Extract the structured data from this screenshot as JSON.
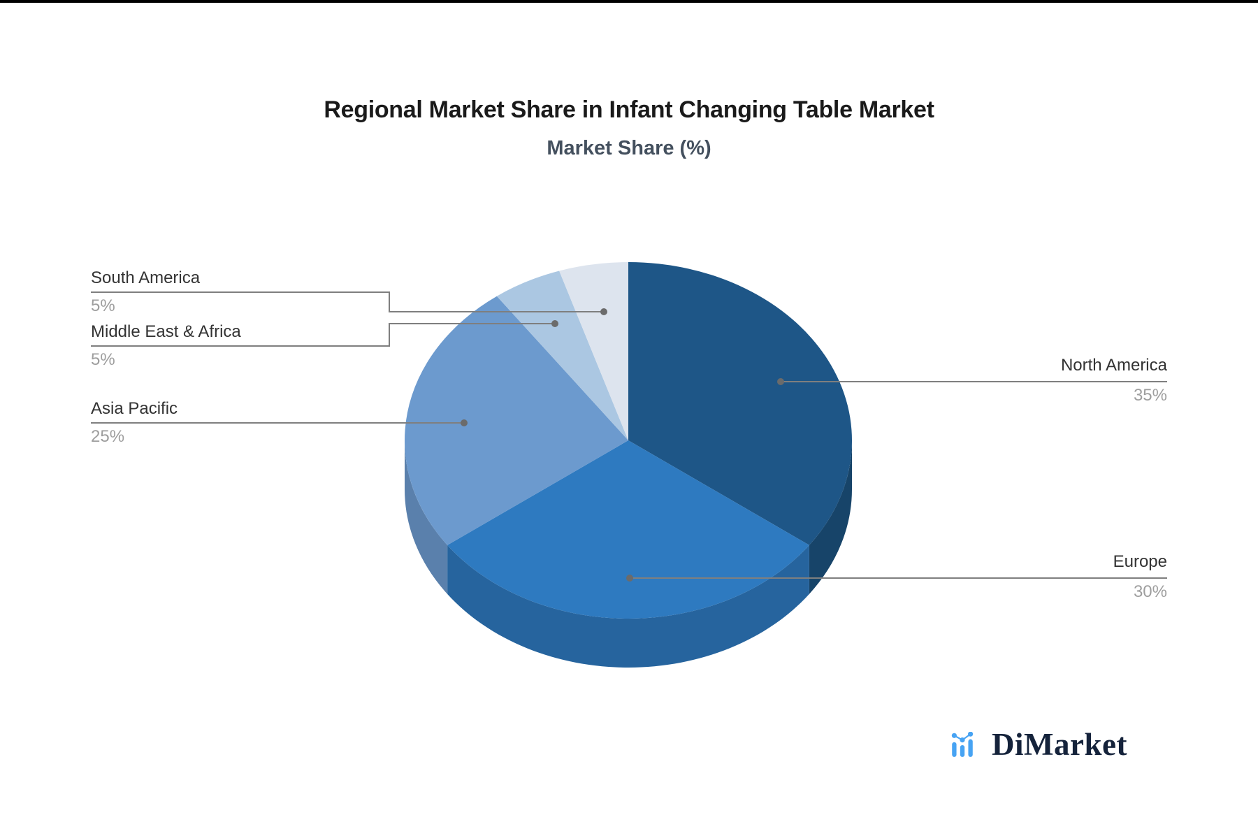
{
  "page": {
    "background": "#ffffff",
    "top_border_color": "#000000"
  },
  "chart_data": {
    "type": "pie",
    "effect": "3d",
    "title": "Regional Market Share in Infant Changing Table Market",
    "subtitle": "Market Share (%)",
    "unit": "%",
    "start_angle_deg": 0,
    "clockwise": true,
    "legend_position": "callout-labels",
    "slices": [
      {
        "label": "North America",
        "value": 35,
        "pct_label": "35%",
        "color": "#1E5687",
        "side_color": "#174469"
      },
      {
        "label": "Europe",
        "value": 30,
        "pct_label": "30%",
        "color": "#2E7AC0",
        "side_color": "#26649E"
      },
      {
        "label": "Asia Pacific",
        "value": 25,
        "pct_label": "25%",
        "color": "#6C9ACE",
        "side_color": "#5A80AC"
      },
      {
        "label": "Middle East & Africa",
        "value": 5,
        "pct_label": "5%",
        "color": "#ABC7E2",
        "side_color": "#9AB4CE"
      },
      {
        "label": "South America",
        "value": 5,
        "pct_label": "5%",
        "color": "#DDE4EE",
        "side_color": "#C5CEDB"
      }
    ],
    "callout_line_color": "#7F7F7F",
    "callout_dot_color": "#6B6B6B",
    "label_color": "#333333",
    "value_color": "#9E9E9E",
    "title_color": "#1A1A1A",
    "subtitle_color": "#44505E"
  },
  "branding": {
    "logo_text": "DiMarket",
    "logo_text_color": "#15233B",
    "icon": "bar-line-chart-icon",
    "icon_color": "#47A3F3"
  }
}
